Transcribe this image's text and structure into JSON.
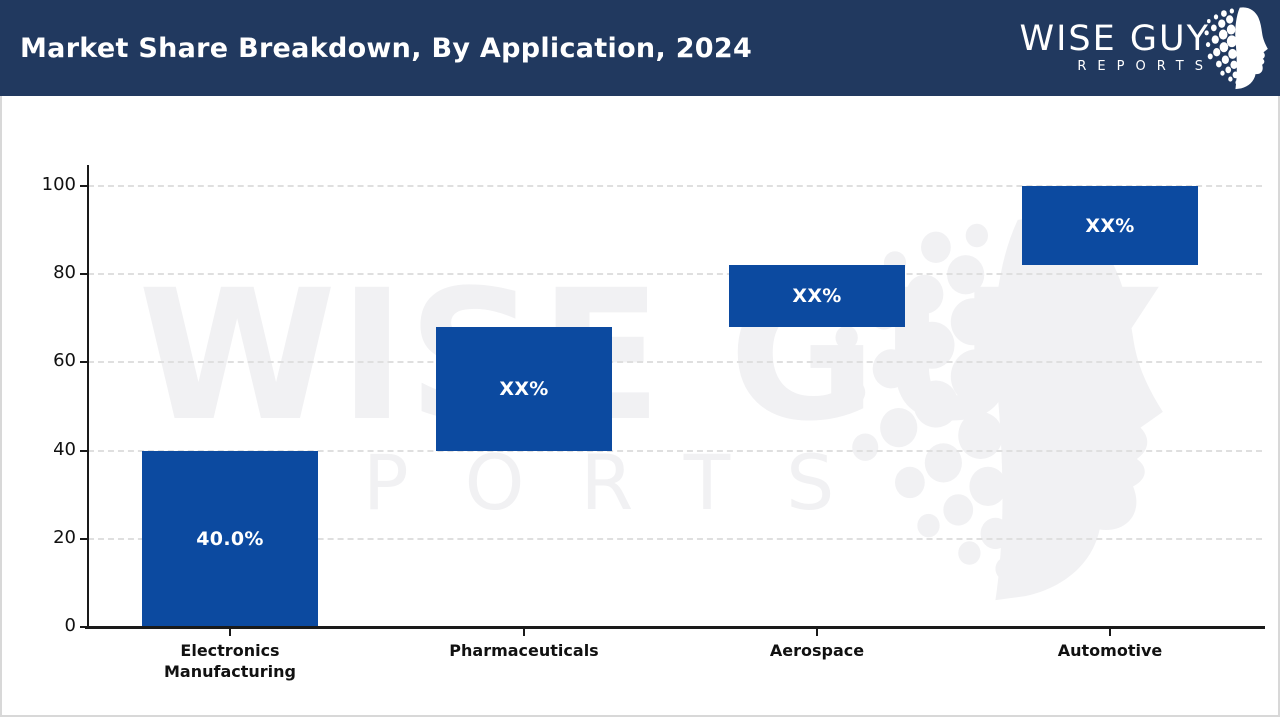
{
  "header": {
    "title": "Market Share Breakdown, By Application, 2024",
    "logo": {
      "line1": "WISE GUY",
      "line2": "REPORTS"
    }
  },
  "watermark": {
    "line1": "WISE GUY",
    "line2": "REPORTS"
  },
  "chart_data": {
    "type": "bar",
    "subtype": "waterfall",
    "title": "Market Share Breakdown, By Application, 2024",
    "categories": [
      "Electronics Manufacturing",
      "Pharmaceuticals",
      "Aerospace",
      "Automotive"
    ],
    "segments": [
      {
        "category": "Electronics Manufacturing",
        "start": 0,
        "end": 40,
        "value": 40,
        "label": "40.0%"
      },
      {
        "category": "Pharmaceuticals",
        "start": 40,
        "end": 68,
        "value": 28,
        "label": "XX%"
      },
      {
        "category": "Aerospace",
        "start": 68,
        "end": 82,
        "value": 14,
        "label": "XX%"
      },
      {
        "category": "Automotive",
        "start": 82,
        "end": 100,
        "value": 18,
        "label": "XX%"
      }
    ],
    "yticks": [
      0,
      20,
      40,
      60,
      80,
      100
    ],
    "ylim": [
      0,
      100
    ],
    "xlabel": "",
    "ylabel": "",
    "grid": "horizontal-dashed",
    "legend": "none",
    "bar_label_color": "#ffffff"
  },
  "colors": {
    "header_bg": "#21395f",
    "bar": "#0c4aa0",
    "grid": "#dfdfdf",
    "axis": "#1a1a1a",
    "watermark": "#f1f1f3",
    "page_border": "#d8d8d8"
  }
}
